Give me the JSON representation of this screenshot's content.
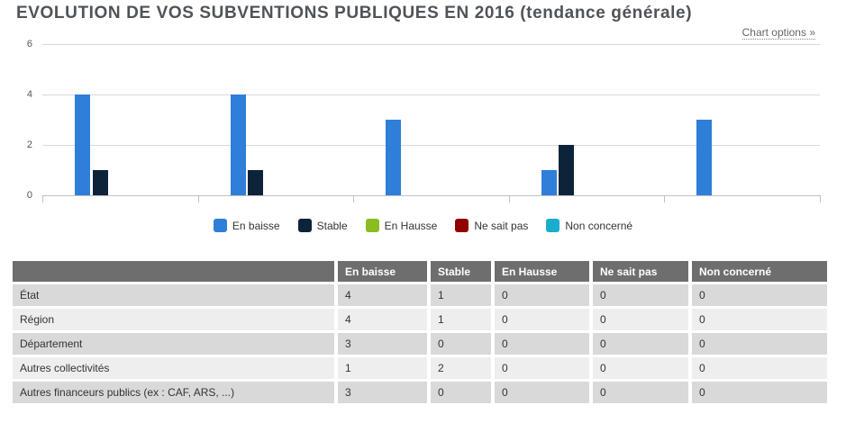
{
  "page": {
    "title": "EVOLUTION DE VOS SUBVENTIONS PUBLIQUES EN 2016 (tendance générale)",
    "chart_options_label": "Chart options »"
  },
  "chart_data": {
    "type": "bar",
    "title": "EVOLUTION DE VOS SUBVENTIONS PUBLIQUES EN 2016 (tendance générale)",
    "categories": [
      "État",
      "Région",
      "Département",
      "Autres collectivités",
      "Autres financeurs publics (ex : CAF, ARS, ...)"
    ],
    "series": [
      {
        "name": "En baisse",
        "color": "#2f7ed8",
        "values": [
          4,
          4,
          3,
          1,
          3
        ]
      },
      {
        "name": "Stable",
        "color": "#0d233a",
        "values": [
          1,
          1,
          0,
          2,
          0
        ]
      },
      {
        "name": "En Hausse",
        "color": "#8bbc21",
        "values": [
          0,
          0,
          0,
          0,
          0
        ]
      },
      {
        "name": "Ne sait pas",
        "color": "#910000",
        "values": [
          0,
          0,
          0,
          0,
          0
        ]
      },
      {
        "name": "Non concerné",
        "color": "#1aadce",
        "values": [
          0,
          0,
          0,
          0,
          0
        ]
      }
    ],
    "xlabel": "",
    "ylabel": "",
    "ylim": [
      0,
      6
    ],
    "yticks": [
      0,
      2,
      4,
      6
    ],
    "grid": true,
    "legend_position": "bottom",
    "x_category_labels_shown": false
  },
  "table": {
    "columns": [
      "",
      "En baisse",
      "Stable",
      "En Hausse",
      "Ne sait pas",
      "Non concerné"
    ],
    "rows": [
      {
        "label": "État",
        "values": [
          4,
          1,
          0,
          0,
          0
        ]
      },
      {
        "label": "Région",
        "values": [
          4,
          1,
          0,
          0,
          0
        ]
      },
      {
        "label": "Département",
        "values": [
          3,
          0,
          0,
          0,
          0
        ]
      },
      {
        "label": "Autres collectivités",
        "values": [
          1,
          2,
          0,
          0,
          0
        ]
      },
      {
        "label": "Autres financeurs publics (ex : CAF, ARS, ...)",
        "values": [
          3,
          0,
          0,
          0,
          0
        ]
      }
    ]
  },
  "colors": {
    "title_text": "#4e5459",
    "link_text": "#666666",
    "gridline": "#d8d8d8",
    "axis": "#c0c0c8",
    "table_header_bg": "#6e6e6e",
    "table_header_text": "#ffffff",
    "table_row_dark": "#d9d9d9",
    "table_row_light": "#eeeeee",
    "table_text": "#333333"
  }
}
